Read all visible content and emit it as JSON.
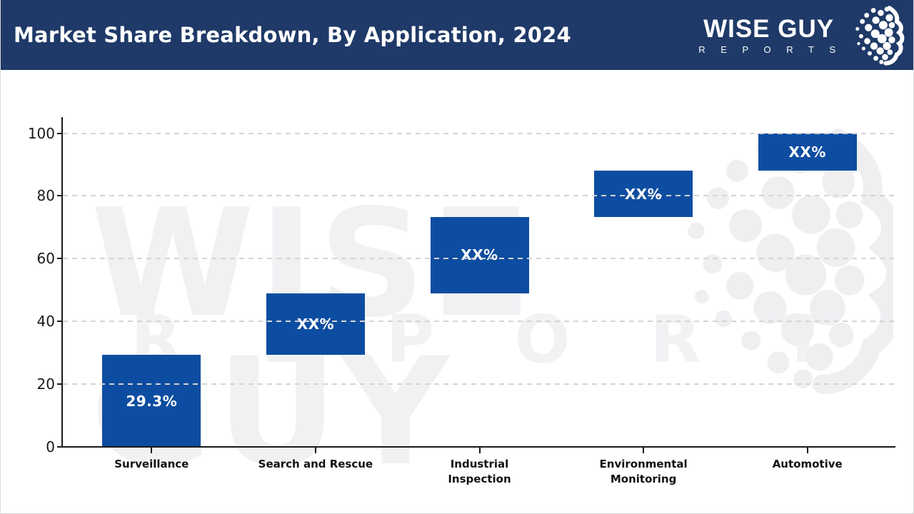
{
  "header": {
    "title": "Market Share Breakdown, By Application, 2024",
    "logo": {
      "brand": "WISE GUY",
      "sub": "R E P O R T S"
    }
  },
  "watermark": {
    "brand": "WISE GUY",
    "sub": "R E P O R T S"
  },
  "chart_data": {
    "type": "bar",
    "subtype": "waterfall",
    "title": "Market Share Breakdown, By Application, 2024",
    "categories": [
      "Surveillance",
      "Search and Rescue",
      "Industrial Inspection",
      "Environmental Monitoring",
      "Automotive"
    ],
    "category_label_lines": [
      [
        "Surveillance"
      ],
      [
        "Search and Rescue"
      ],
      [
        "Industrial",
        "Inspection"
      ],
      [
        "Environmental",
        "Monitoring"
      ],
      [
        "Automotive"
      ]
    ],
    "segments": [
      {
        "category": "Surveillance",
        "start": 0,
        "end": 29.3,
        "label": "29.3%"
      },
      {
        "category": "Search and Rescue",
        "start": 29.3,
        "end": 49.0,
        "label": "XX%"
      },
      {
        "category": "Industrial Inspection",
        "start": 49.0,
        "end": 73.3,
        "label": "XX%"
      },
      {
        "category": "Environmental Monitoring",
        "start": 73.3,
        "end": 88.0,
        "label": "XX%"
      },
      {
        "category": "Automotive",
        "start": 88.0,
        "end": 100,
        "label": "XX%"
      }
    ],
    "yticks": [
      0,
      20,
      40,
      60,
      80,
      100
    ],
    "ytick_labels": [
      "0",
      "20",
      "40",
      "60",
      "80",
      "100"
    ],
    "ylim": [
      0,
      105
    ],
    "xlabel": "",
    "ylabel": "",
    "grid": "horizontal-dashed-over-bars",
    "legend_position": "none",
    "bar_color": "#0d4da1",
    "value_label_color": "#ffffff"
  },
  "colors": {
    "header_background": "#1f3a68",
    "bar_blue": "#0d4da1",
    "gridline": "#d4d4d4",
    "axis": "#1a1a1a",
    "watermark": "#f1f1f4",
    "figure_border": "#d9d9d9",
    "title_text": "#ffffff"
  }
}
